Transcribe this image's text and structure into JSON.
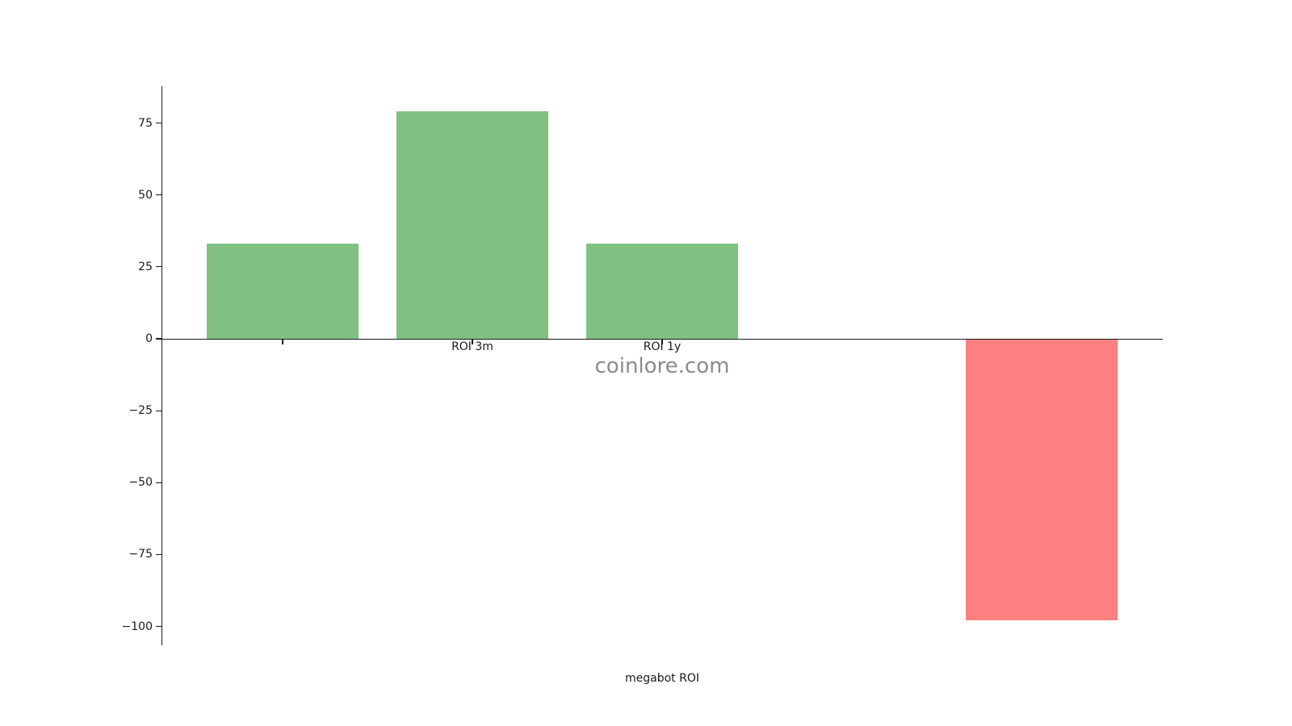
{
  "watermark": {
    "text": "coinlore.com",
    "color": "#8b8b8b"
  },
  "chart_data": {
    "type": "bar",
    "title": "",
    "xlabel": "megabot ROI",
    "ylabel": "",
    "categories": [
      "",
      "ROI 3m",
      "ROI 1y",
      ""
    ],
    "values": [
      33,
      79,
      33,
      -98
    ],
    "bars": [
      {
        "label": "",
        "value": 33,
        "color": "#80c080",
        "slot": 0
      },
      {
        "label": "ROI 3m",
        "value": 79,
        "color": "#80c080",
        "slot": 1
      },
      {
        "label": "ROI 1y",
        "value": 33,
        "color": "#80c080",
        "slot": 2
      },
      {
        "label": "",
        "value": -98,
        "color": "#ff8080",
        "slot": 4
      }
    ],
    "yticks": [
      {
        "value": 75,
        "label": "75"
      },
      {
        "value": 50,
        "label": "50"
      },
      {
        "value": 25,
        "label": "25"
      },
      {
        "value": 0,
        "label": "0"
      },
      {
        "value": -25,
        "label": "−25"
      },
      {
        "value": -50,
        "label": "−50"
      },
      {
        "value": -75,
        "label": "−75"
      },
      {
        "value": -100,
        "label": "−100"
      }
    ],
    "xticks": [
      {
        "slot": 0,
        "label": ""
      },
      {
        "slot": 1,
        "label": "ROI 3m"
      },
      {
        "slot": 2,
        "label": "ROI 1y"
      },
      {
        "slot": 4,
        "label": ""
      }
    ],
    "ylim": [
      -106.9,
      87.8
    ],
    "grid": false,
    "legend": null,
    "colors": {
      "positive": "#80c080",
      "negative": "#ff8080",
      "axis": "#1a1a1a",
      "watermark": "#8b8b8b"
    }
  }
}
